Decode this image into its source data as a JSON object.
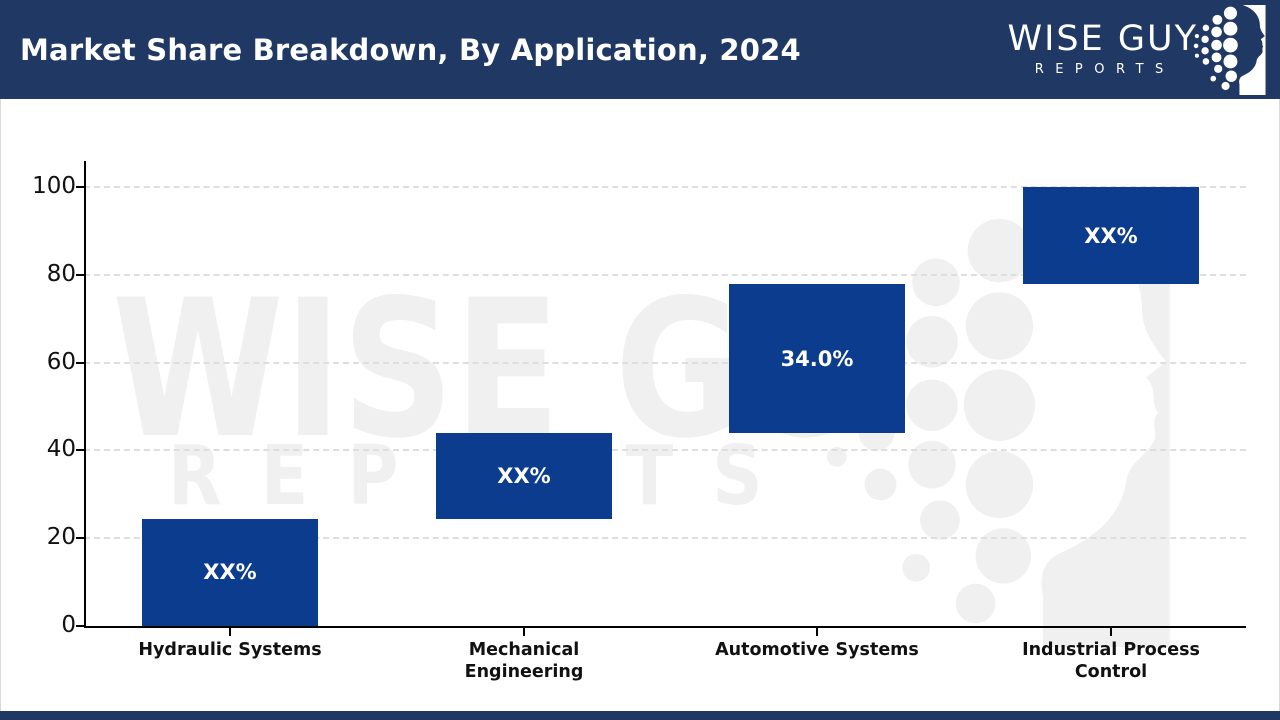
{
  "header": {
    "title": "Market Share Breakdown, By Application, 2024",
    "logo": {
      "brand": "WISE GUY",
      "sub": "REPORTS"
    }
  },
  "watermark": {
    "brand": "WISE GU",
    "sub": "REPORTS"
  },
  "chart_data": {
    "type": "bar",
    "variant": "waterfall-floating-bars",
    "title": "Market Share Breakdown, By Application, 2024",
    "categories": [
      "Hydraulic Systems",
      "Mechanical\nEngineering",
      "Automotive Systems",
      "Industrial Process\nControl"
    ],
    "segments": [
      {
        "category": "Hydraulic Systems",
        "start": 0,
        "end": 24.4,
        "label": "XX%"
      },
      {
        "category": "Mechanical Engineering",
        "start": 24.4,
        "end": 43.9,
        "label": "XX%"
      },
      {
        "category": "Automotive Systems",
        "start": 43.9,
        "end": 77.9,
        "label": "34.0%"
      },
      {
        "category": "Industrial Process Control",
        "start": 77.9,
        "end": 100,
        "label": "XX%"
      }
    ],
    "y_ticks": [
      0,
      20,
      40,
      60,
      80,
      100
    ],
    "ylim": [
      0,
      106
    ],
    "xlabel": "",
    "ylabel": "",
    "grid": "horizontal-dashed",
    "legend": "none"
  },
  "colors": {
    "header_bg": "#203864",
    "footer_bg": "#203864",
    "bar": "#0b3c8e",
    "bar_label": "#ffffff",
    "grid": "#dedede",
    "axis": "#000000",
    "watermark": "#f0f0f0"
  }
}
